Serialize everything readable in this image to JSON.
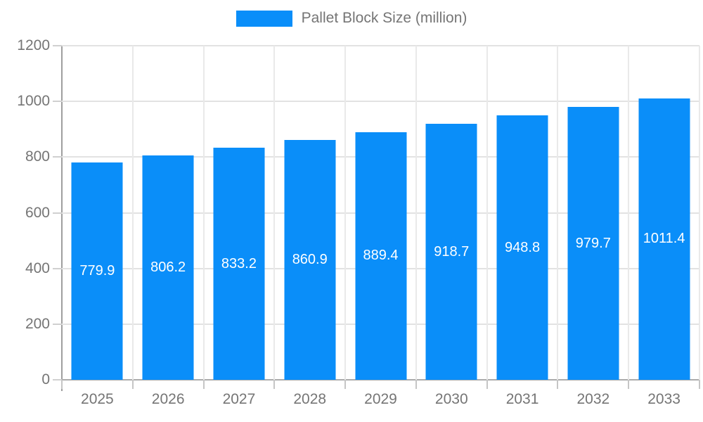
{
  "legend": {
    "label": "Pallet Block Size (million)",
    "swatch_color": "#0A8EF9"
  },
  "chart_data": {
    "type": "bar",
    "title": "",
    "xlabel": "",
    "ylabel": "",
    "categories": [
      "2025",
      "2026",
      "2027",
      "2028",
      "2029",
      "2030",
      "2031",
      "2032",
      "2033"
    ],
    "series": [
      {
        "name": "Pallet Block Size (million)",
        "values": [
          779.9,
          806.2,
          833.2,
          860.9,
          889.4,
          918.7,
          948.8,
          979.7,
          1011.4
        ]
      }
    ],
    "value_labels": [
      "779.9",
      "806.2",
      "833.2",
      "860.9",
      "889.4",
      "918.7",
      "948.8",
      "979.7",
      "1011.4"
    ],
    "ylim": [
      0,
      1200
    ],
    "y_ticks": [
      0,
      200,
      400,
      600,
      800,
      1000,
      1200
    ],
    "grid": true,
    "legend_position": "top",
    "colors": {
      "bar": "#0A8EF9",
      "value_label_text": "#FFFFFF",
      "axis_text": "#757575",
      "gridline": "#E2E2E2",
      "axis_line": "#9E9E9E"
    }
  }
}
